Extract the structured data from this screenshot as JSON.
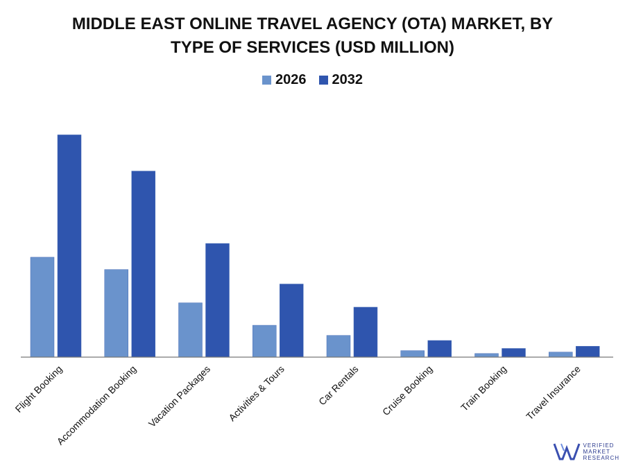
{
  "chart_data": {
    "type": "bar",
    "title_lines": [
      "MIDDLE EAST ONLINE TRAVEL AGENCY (OTA) MARKET, BY",
      "TYPE OF SERVICES (USD MILLION)"
    ],
    "categories": [
      "Flight Booking",
      "Accommodation Booking",
      "Vacation Packages",
      "Activities & Tours",
      "Car Rentals",
      "Cruise Booking",
      "Train Booking",
      "Travel Insurance"
    ],
    "series": [
      {
        "name": "2026",
        "color": "#6a93cc",
        "values": [
          138,
          121,
          75,
          44,
          30,
          9,
          5,
          7
        ]
      },
      {
        "name": "2032",
        "color": "#2f55ae",
        "values": [
          307,
          257,
          157,
          101,
          69,
          23,
          12,
          15
        ]
      }
    ],
    "ylim": [
      0,
      340
    ],
    "grid": false,
    "legend_position": "top-center"
  },
  "branding": {
    "line1": "VERIFIED",
    "line2": "MARKET",
    "line3": "RESEARCH"
  }
}
